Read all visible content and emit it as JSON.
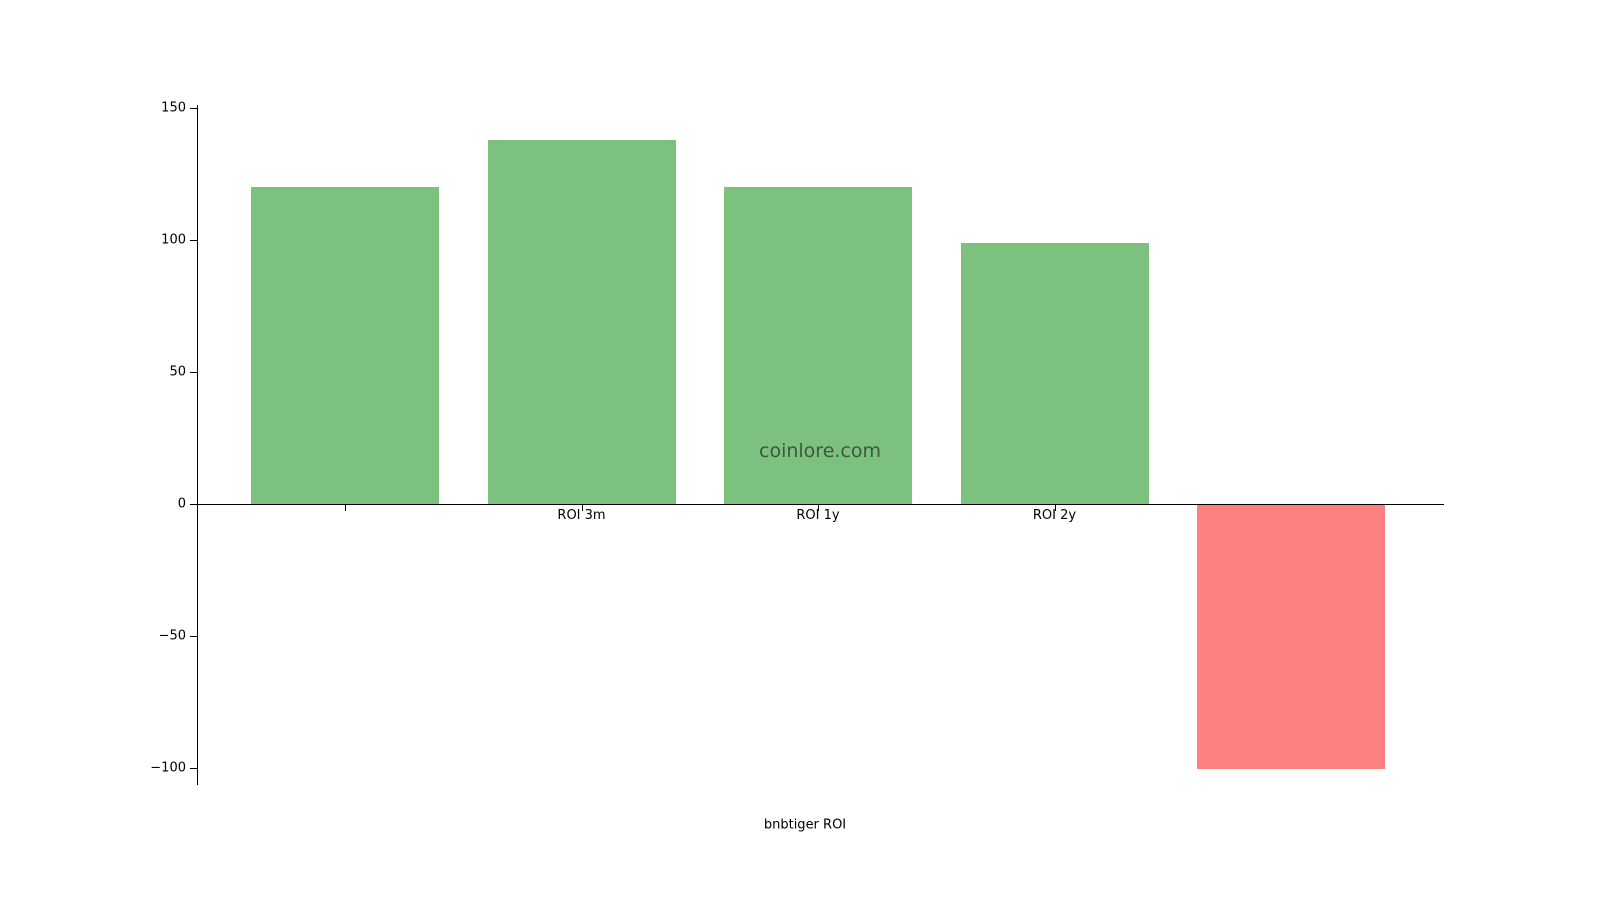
{
  "page": {
    "background": "#ffffff"
  },
  "watermark": {
    "text": "coinlore.com"
  },
  "chart_data": {
    "type": "bar",
    "title": "bnbtiger ROI",
    "categories": [
      "",
      "ROI 3m",
      "ROI 1y",
      "ROI 2y",
      ""
    ],
    "values": [
      120,
      138,
      120,
      99,
      -100
    ],
    "xticks_visible": [
      true,
      true,
      true,
      true,
      false
    ],
    "yticks": [
      150,
      100,
      50,
      0,
      -50,
      -100
    ],
    "ytick_labels": [
      "150",
      "100",
      "50",
      "0",
      "−50",
      "−100"
    ],
    "ylim": [
      -106,
      151
    ],
    "positive_color": "#7dc17f",
    "negative_color": "#fd8181",
    "axis_color": "#000000",
    "grid": false,
    "legend": false,
    "xlabel": "",
    "ylabel": ""
  }
}
